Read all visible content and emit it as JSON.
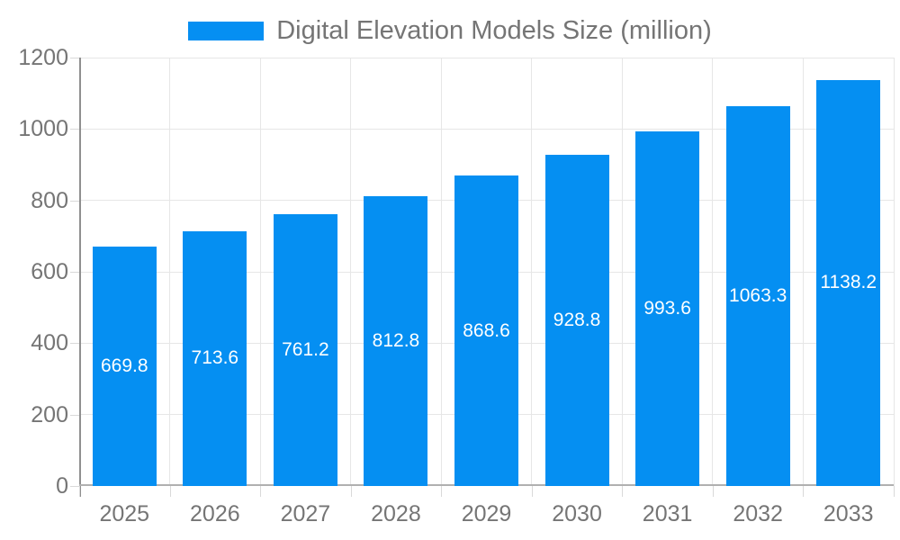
{
  "chart_data": {
    "type": "bar",
    "title": "Digital Elevation Models Size (million)",
    "xlabel": "",
    "ylabel": "",
    "categories": [
      "2025",
      "2026",
      "2027",
      "2028",
      "2029",
      "2030",
      "2031",
      "2032",
      "2033"
    ],
    "series": [
      {
        "name": "Digital Elevation Models Size (million)",
        "values": [
          669.8,
          713.6,
          761.2,
          812.8,
          868.6,
          928.8,
          993.6,
          1063.3,
          1138.2
        ]
      }
    ],
    "value_labels": [
      "669.8",
      "713.6",
      "761.2",
      "812.8",
      "868.6",
      "928.8",
      "993.6",
      "1063.3",
      "1138.2"
    ],
    "ylim": [
      0,
      1200
    ],
    "yticks": [
      0,
      200,
      400,
      600,
      800,
      1000,
      1200
    ],
    "grid": true,
    "legend_position": "top-center",
    "colors": {
      "bar": "#058ff2",
      "value_label": "#ffffff",
      "axis_text": "#757575",
      "grid_line": "#e6e6e6",
      "tick_line": "#d9d9d9",
      "y_axis_line": "#8f8f8f",
      "x_axis_line": "#b0b0b0",
      "background": "#ffffff"
    }
  }
}
